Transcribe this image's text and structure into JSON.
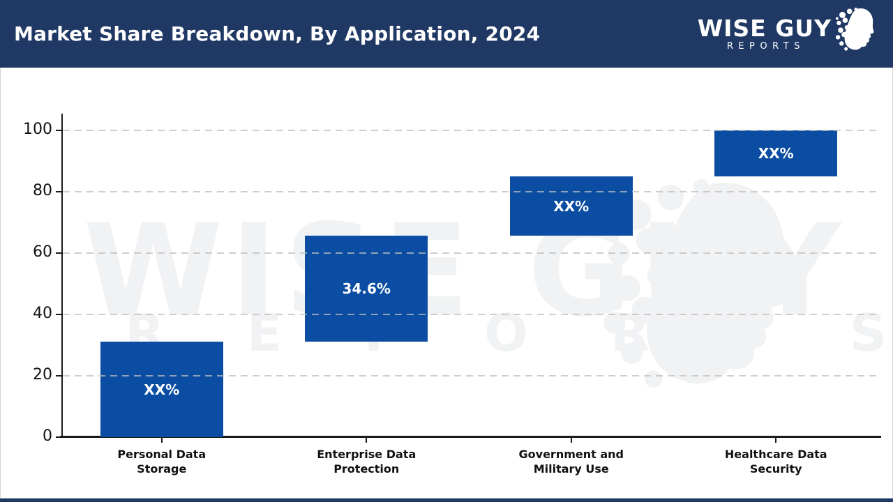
{
  "header": {
    "title": "Market Share Breakdown, By Application, 2024",
    "logo": {
      "brand": "WISE GUY",
      "sub": "REPORTS"
    }
  },
  "watermark": {
    "brand": "WISE GUY",
    "sub": "R E P O R T S"
  },
  "chart_data": {
    "type": "bar",
    "subtype": "floating-waterfall",
    "title": "Market Share Breakdown, By Application, 2024",
    "categories": [
      "Personal Data Storage",
      "Enterprise Data Protection",
      "Government and Military Use",
      "Healthcare Data Security"
    ],
    "category_label_lines": [
      [
        "Personal Data",
        "Storage"
      ],
      [
        "Enterprise Data",
        "Protection"
      ],
      [
        "Government and",
        "Military Use"
      ],
      [
        "Healthcare Data",
        "Security"
      ]
    ],
    "series": [
      {
        "name": "Market share",
        "segments": [
          {
            "from": 0,
            "to": 31,
            "label": "XX%"
          },
          {
            "from": 31,
            "to": 65.6,
            "label": "34.6%"
          },
          {
            "from": 65.6,
            "to": 84.9,
            "label": "XX%"
          },
          {
            "from": 84.9,
            "to": 100,
            "label": "XX%"
          }
        ]
      }
    ],
    "ylim": [
      0,
      100
    ],
    "yticks": [
      0,
      20,
      40,
      60,
      80,
      100
    ],
    "xlabel": "",
    "ylabel": "",
    "grid": "horizontal-dashed",
    "legend": "none",
    "bar_color": "#0b4da2",
    "bar_label_color": "#ffffff"
  },
  "colors": {
    "header_bg": "#1f3864",
    "footer_bg": "#1f3864",
    "bar": "#0b4da2",
    "axis": "#1a1a1a",
    "grid": "#d9d9d9",
    "watermark": "#f1f2f4"
  }
}
